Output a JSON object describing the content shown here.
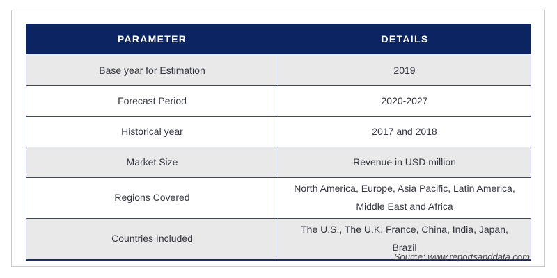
{
  "chart_data": {
    "type": "table",
    "columns": [
      "PARAMETER",
      "DETAILS"
    ],
    "rows": [
      {
        "parameter": "Base year for Estimation",
        "details": "2019"
      },
      {
        "parameter": "Forecast Period",
        "details": "2020-2027"
      },
      {
        "parameter": "Historical year",
        "details": "2017 and 2018"
      },
      {
        "parameter": "Market Size",
        "details": "Revenue in USD million"
      },
      {
        "parameter": "Regions Covered",
        "details": "North America, Europe, Asia Pacific, Latin America, Middle East and Africa"
      },
      {
        "parameter": "Countries Included",
        "details": "The U.S., The  U.K, France, China, India, Japan, Brazil"
      }
    ]
  },
  "source_note": "Source: www.reportsanddata.com",
  "colors": {
    "header_bg": "#0d2463",
    "header_text": "#ffffff",
    "shaded_row_bg": "#e9e9e9",
    "plain_row_bg": "#ffffff",
    "body_text": "#333640",
    "grid_line": "#3f4959",
    "column_divider": "#56648c",
    "table_bottom_border": "#1d2c5f",
    "outer_border": "#c6c8cc",
    "source_text": "#4a4a4a"
  }
}
